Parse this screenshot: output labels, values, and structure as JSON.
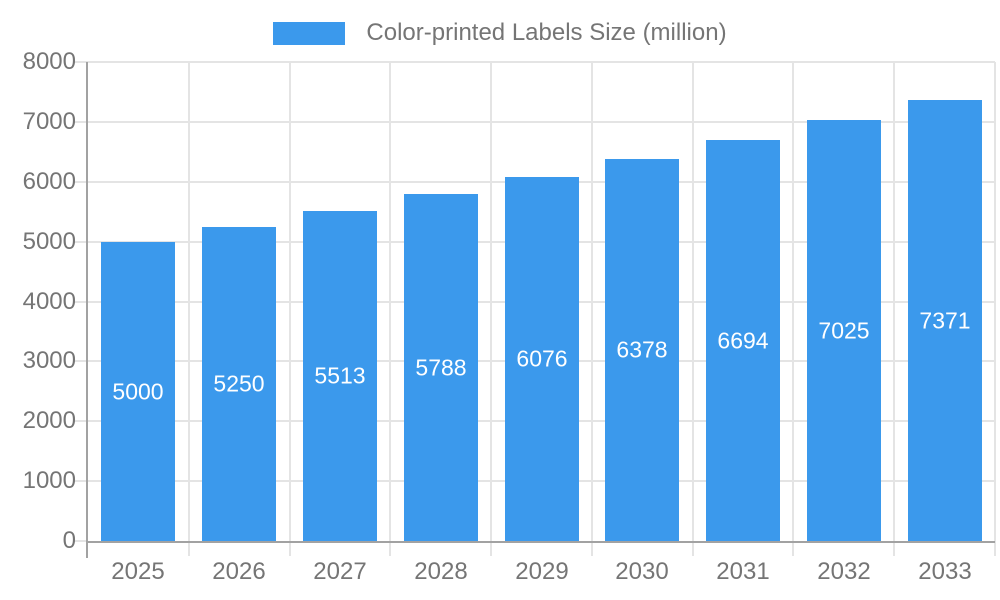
{
  "chart_data": {
    "type": "bar",
    "title": "Color-printed Labels Size (million)",
    "categories": [
      "2025",
      "2026",
      "2027",
      "2028",
      "2029",
      "2030",
      "2031",
      "2032",
      "2033"
    ],
    "values": [
      5000,
      5250,
      5513,
      5788,
      6076,
      6378,
      6694,
      7025,
      7371
    ],
    "xlabel": "",
    "ylabel": "",
    "ylim": [
      0,
      8000
    ],
    "yticks": [
      0,
      1000,
      2000,
      3000,
      4000,
      5000,
      6000,
      7000,
      8000
    ],
    "grid": true,
    "legend_position": "top",
    "value_labels_inside_bars": true,
    "colors": {
      "bar": "#3B99EC",
      "grid": "#E4E4E4",
      "axis": "#A2A2A2",
      "text": "#757575",
      "value_label": "#FFFFFF",
      "background": "#FFFFFF"
    }
  }
}
